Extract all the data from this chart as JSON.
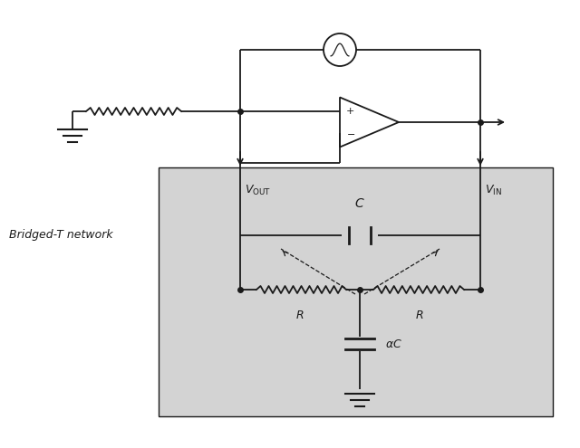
{
  "bg_color": "#ffffff",
  "box_color": "#d3d3d3",
  "line_color": "#1a1a1a",
  "label_bridged": "Bridged-T network",
  "label_C": "C",
  "label_R1": "R",
  "label_R2": "R",
  "label_aC": "αC"
}
